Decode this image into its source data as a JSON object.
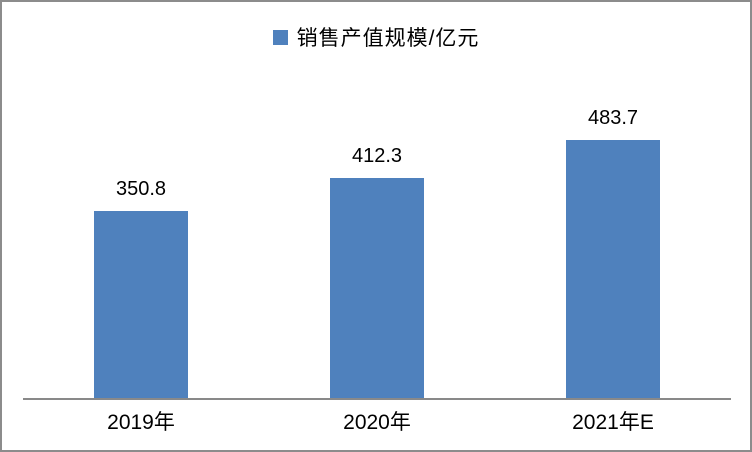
{
  "chart_data": {
    "type": "bar",
    "title": "",
    "categories": [
      "2019年",
      "2020年",
      "2021年E"
    ],
    "values": [
      350.8,
      412.3,
      483.7
    ],
    "series_name": "销售产值规模/亿元",
    "data_labels": [
      "350.8",
      "412.3",
      "483.7"
    ],
    "xlabel": "",
    "ylabel": "",
    "ylim": [
      0,
      630
    ],
    "grid": false,
    "legend_position": "top-center",
    "y_axis_visible": false,
    "bar_color": "#4F81BD",
    "axis_color": "#898989",
    "label_color": "#000000"
  },
  "legend": {
    "label": "销售产值规模/亿元",
    "swatch_color": "#4F81BD"
  }
}
